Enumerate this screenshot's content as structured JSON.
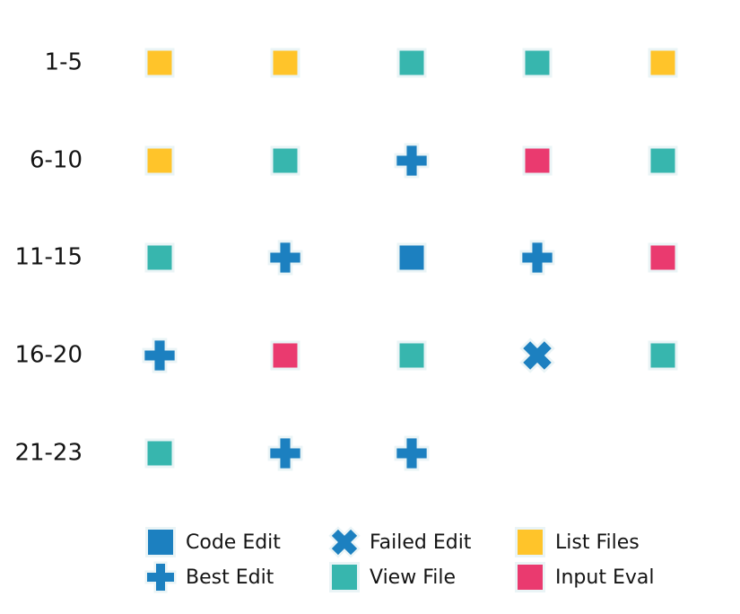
{
  "chart_data": {
    "type": "scatter",
    "title": "",
    "y_tick_labels": [
      "1-5",
      "6-10",
      "11-15",
      "16-20",
      "21-23"
    ],
    "columns_per_row": 5,
    "grid": [
      [
        "List Files",
        "List Files",
        "View File",
        "View File",
        "List Files"
      ],
      [
        "List Files",
        "View File",
        "Best Edit",
        "Input Eval",
        "View File"
      ],
      [
        "View File",
        "Best Edit",
        "Code Edit",
        "Best Edit",
        "Input Eval"
      ],
      [
        "Best Edit",
        "Input Eval",
        "View File",
        "Failed Edit",
        "View File"
      ],
      [
        "View File",
        "Best Edit",
        "Best Edit",
        null,
        null
      ]
    ],
    "sequence": [
      "List Files",
      "List Files",
      "View File",
      "View File",
      "List Files",
      "List Files",
      "View File",
      "Best Edit",
      "Input Eval",
      "View File",
      "View File",
      "Best Edit",
      "Code Edit",
      "Best Edit",
      "Input Eval",
      "Best Edit",
      "Input Eval",
      "View File",
      "Failed Edit",
      "View File",
      "View File",
      "Best Edit",
      "Best Edit"
    ],
    "legend_entries": [
      "Code Edit",
      "Failed Edit",
      "List Files",
      "Best Edit",
      "View File",
      "Input Eval"
    ],
    "legend_position": "lower center",
    "axes_visible": false,
    "gridlines": false
  },
  "markers": {
    "Code Edit": {
      "shape": "square",
      "color": "#1c80c0"
    },
    "Failed Edit": {
      "shape": "x",
      "color": "#1c80c0"
    },
    "List Files": {
      "shape": "square",
      "color": "#ffc42a"
    },
    "Best Edit": {
      "shape": "plus",
      "color": "#1c80c0"
    },
    "View File": {
      "shape": "square",
      "color": "#37b6ae"
    },
    "Input Eval": {
      "shape": "square",
      "color": "#ea3a6f"
    }
  },
  "rows": [
    {
      "label": "1-5",
      "actions": [
        "List Files",
        "List Files",
        "View File",
        "View File",
        "List Files"
      ]
    },
    {
      "label": "6-10",
      "actions": [
        "List Files",
        "View File",
        "Best Edit",
        "Input Eval",
        "View File"
      ]
    },
    {
      "label": "11-15",
      "actions": [
        "View File",
        "Best Edit",
        "Code Edit",
        "Best Edit",
        "Input Eval"
      ]
    },
    {
      "label": "16-20",
      "actions": [
        "Best Edit",
        "Input Eval",
        "View File",
        "Failed Edit",
        "View File"
      ]
    },
    {
      "label": "21-23",
      "actions": [
        "View File",
        "Best Edit",
        "Best Edit",
        null,
        null
      ]
    }
  ],
  "legend_rows": [
    [
      "Code Edit",
      "Failed Edit",
      "List Files"
    ],
    [
      "Best Edit",
      "View File",
      "Input Eval"
    ]
  ],
  "style": {
    "halo": "#eaf4f6",
    "text_color": "#141414",
    "background": "#ffffff"
  }
}
